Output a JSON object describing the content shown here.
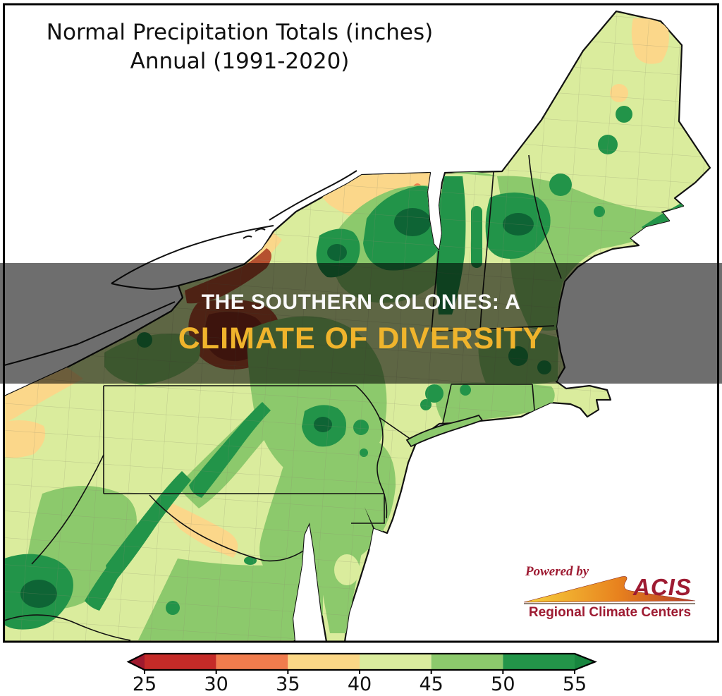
{
  "map": {
    "title_line1": "Normal Precipitation Totals (inches)",
    "title_line2": "Annual (1991-2020)",
    "region": "Northeast United States"
  },
  "banner": {
    "line1": "THE SOUTHERN COLONIES: A",
    "line2": "CLIMATE OF DIVERSITY",
    "line1_color": "#fafafa",
    "line2_color": "#F0B42C"
  },
  "legend": {
    "tick_labels": [
      "25",
      "30",
      "35",
      "40",
      "45",
      "50",
      "55"
    ],
    "segment_colors": [
      "#C52B28",
      "#F07C4D",
      "#FBD786",
      "#DAEC9D",
      "#8CC96C",
      "#239549"
    ],
    "left_arrow_color": "#A01A2E",
    "right_arrow_color": "#18863F",
    "label_color": "#111111"
  },
  "logo": {
    "powered_by": "Powered by",
    "acronym": "ACIS",
    "subtitle": "Regional Climate Centers",
    "text_color": "#9E1B32",
    "swoosh_gradient": [
      "#F7D23E",
      "#E8821E",
      "#B33A25"
    ]
  },
  "map_colors": {
    "water": "#ffffff",
    "base": "#DAEC9D",
    "mid": "#8CC96C",
    "dark": "#229449",
    "darkest": "#0E6435",
    "tan": "#FBD78A",
    "orange": "#F07C4D",
    "red_strip": "#B5502F",
    "red_core": "#8E2F1F",
    "county": "#8a8a6a",
    "border": "#111111"
  }
}
